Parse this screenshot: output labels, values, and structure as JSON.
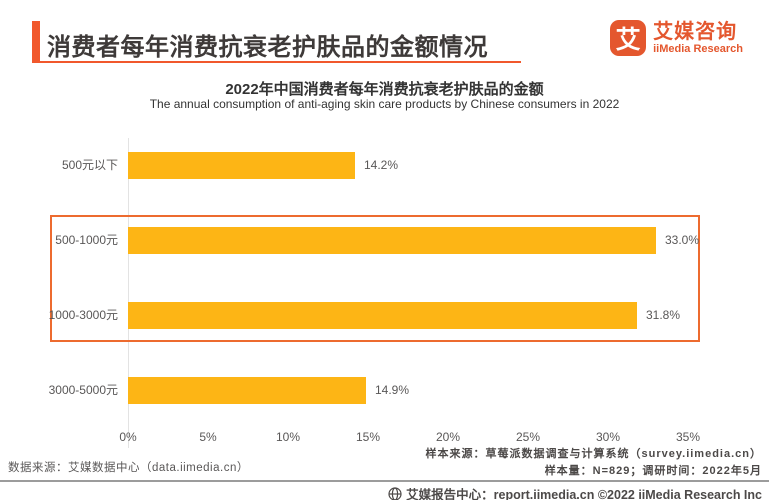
{
  "header": {
    "title": "消费者每年消费抗衰老护肤品的金额情况",
    "logo": {
      "icon_char": "艾",
      "name_cn": "艾媒咨询",
      "name_en": "iiMedia Research"
    }
  },
  "chart_data": {
    "type": "bar",
    "orientation": "horizontal",
    "title": "2022年中国消费者每年消费抗衰老护肤品的金额",
    "subtitle": "The annual consumption of anti-aging skin care products by Chinese consumers in 2022",
    "categories": [
      "500元以下",
      "500-1000元",
      "1000-3000元",
      "3000-5000元"
    ],
    "values": [
      14.2,
      33.0,
      31.8,
      14.9
    ],
    "value_labels": [
      "14.2%",
      "33.0%",
      "31.8%",
      "14.9%"
    ],
    "xlabel": "",
    "ylabel": "",
    "xlim": [
      0,
      35
    ],
    "x_ticks": [
      "0%",
      "5%",
      "10%",
      "15%",
      "20%",
      "25%",
      "30%",
      "35%"
    ],
    "grid": false,
    "legend": false,
    "bar_color": "#FDB515",
    "highlight": {
      "start_index": 1,
      "end_index": 2,
      "border_color": "#ED6B2F"
    }
  },
  "footer": {
    "data_source": "数据来源：艾媒数据中心（data.iimedia.cn）",
    "sample_source": "样本来源：草莓派数据调查与计算系统（survey.iimedia.cn）",
    "sample_info": "样本量：N=829；调研时间：2022年5月",
    "report_line": "艾媒报告中心：report.iimedia.cn  ©2022  iiMedia Research Inc"
  },
  "colors": {
    "accent_orange": "#F1582C",
    "bar_yellow": "#FDB515",
    "highlight_border": "#ED6B2F",
    "logo_orange": "#E4572E",
    "title_text": "#3E3A39",
    "body_text": "#595757",
    "footer_text": "#4C4948"
  }
}
